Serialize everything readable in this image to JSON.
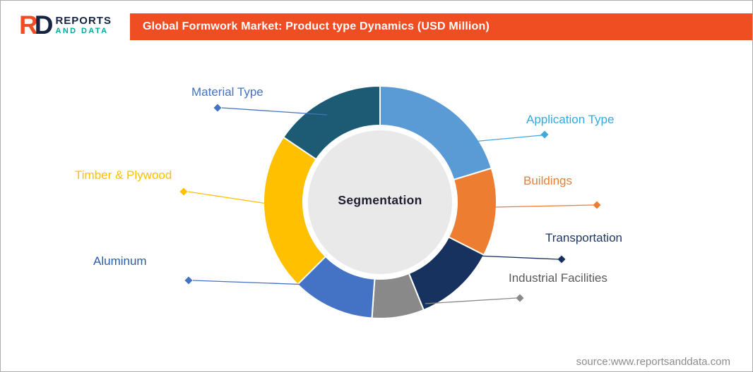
{
  "logo": {
    "mark_r": "R",
    "mark_d": "D",
    "line1": "REPORTS",
    "line2": "AND DATA",
    "mark_r_color": "#F04D23",
    "mark_d_color": "#152441",
    "line1_color": "#152441",
    "line2_color": "#00A79D"
  },
  "header": {
    "title": "Global Formwork Market: Product type Dynamics (USD Million)",
    "bar_color": "#EF4E23"
  },
  "footer": {
    "source": "source:www.reportsanddata.com"
  },
  "chart_data": {
    "type": "pie",
    "style": "donut",
    "center_label": "Segmentation",
    "center_fill": "#E9E9E9",
    "legend": "none",
    "values_shown": false,
    "segments": [
      {
        "id": "application-type",
        "label": "Application Type",
        "color": "#5B9BD5",
        "label_color": "#35A8E0",
        "callout_color": "#41A8DC",
        "start_angle": 0,
        "end_angle": 73
      },
      {
        "id": "buildings",
        "label": "Buildings",
        "color": "#ED7D31",
        "label_color": "#ED7D31",
        "callout_color": "#ED7D31",
        "start_angle": 73,
        "end_angle": 117
      },
      {
        "id": "transportation",
        "label": "Transportation",
        "color": "#17325E",
        "label_color": "#1F3864",
        "callout_color": "#17325E",
        "start_angle": 117,
        "end_angle": 158
      },
      {
        "id": "industrial-facilities",
        "label": "Industrial Facilities",
        "color": "#898989",
        "label_color": "#5A5A5A",
        "callout_color": "#898989",
        "start_angle": 158,
        "end_angle": 184
      },
      {
        "id": "aluminum",
        "label": "Aluminum",
        "color": "#4472C4",
        "label_color": "#2D5BA9",
        "callout_color": "#4472C4",
        "start_angle": 184,
        "end_angle": 225
      },
      {
        "id": "timber-plywood",
        "label": "Timber & Plywood",
        "color": "#FFC000",
        "label_color": "#FFC000",
        "callout_color": "#FFC000",
        "start_angle": 225,
        "end_angle": 304
      },
      {
        "id": "material-type",
        "label": "Material Type",
        "color": "#1D5B74",
        "label_color": "#4472C4",
        "callout_color": "#4472C4",
        "start_angle": 304,
        "end_angle": 360
      }
    ]
  }
}
